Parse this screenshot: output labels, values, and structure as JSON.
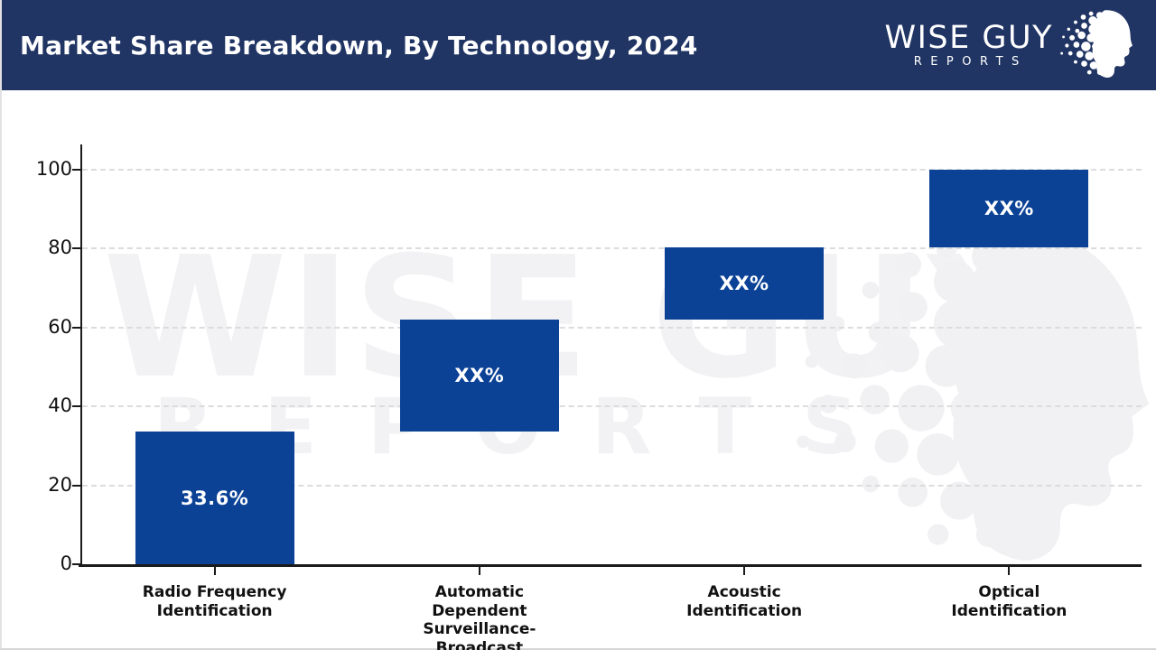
{
  "header": {
    "title": "Market Share Breakdown, By Technology, 2024",
    "bg_color": "#213564",
    "logo": {
      "line1": "WISE GUY",
      "line2": "REPORTS",
      "head_icon": "dotted-head-profile-icon"
    }
  },
  "watermark": {
    "line1": "WISE GUY",
    "line2": "REPORTS",
    "head_icon": "dotted-head-profile-icon",
    "color": "#f2f2f4"
  },
  "chart_data": {
    "type": "bar",
    "subtype": "waterfall",
    "title": "Market Share Breakdown, By Technology, 2024",
    "categories": [
      "Radio Frequency Identification",
      "Automatic Dependent Surveillance-Broadcast",
      "Acoustic Identification",
      "Optical Identification"
    ],
    "category_lines": [
      [
        "Radio Frequency",
        "Identification"
      ],
      [
        "Automatic",
        "Dependent",
        "Surveillance-",
        "Broadcast"
      ],
      [
        "Acoustic",
        "Identification"
      ],
      [
        "Optical",
        "Identification"
      ]
    ],
    "segments": [
      {
        "start": 0,
        "end": 33.6,
        "label": "33.6%"
      },
      {
        "start": 33.6,
        "end": 62,
        "label": "XX%"
      },
      {
        "start": 62,
        "end": 80.3,
        "label": "XX%"
      },
      {
        "start": 80.3,
        "end": 100,
        "label": "XX%"
      }
    ],
    "xlabel": "",
    "ylabel": "",
    "ylim": [
      0,
      105
    ],
    "yticks": [
      0,
      20,
      40,
      60,
      80,
      100
    ],
    "legend": "none",
    "grid": "horizontal-dashed",
    "bar_color": "#0b4296",
    "grid_color": "#dcdcdc",
    "axis_color": "#1a1a1a",
    "bar_label_color": "#ffffff"
  }
}
